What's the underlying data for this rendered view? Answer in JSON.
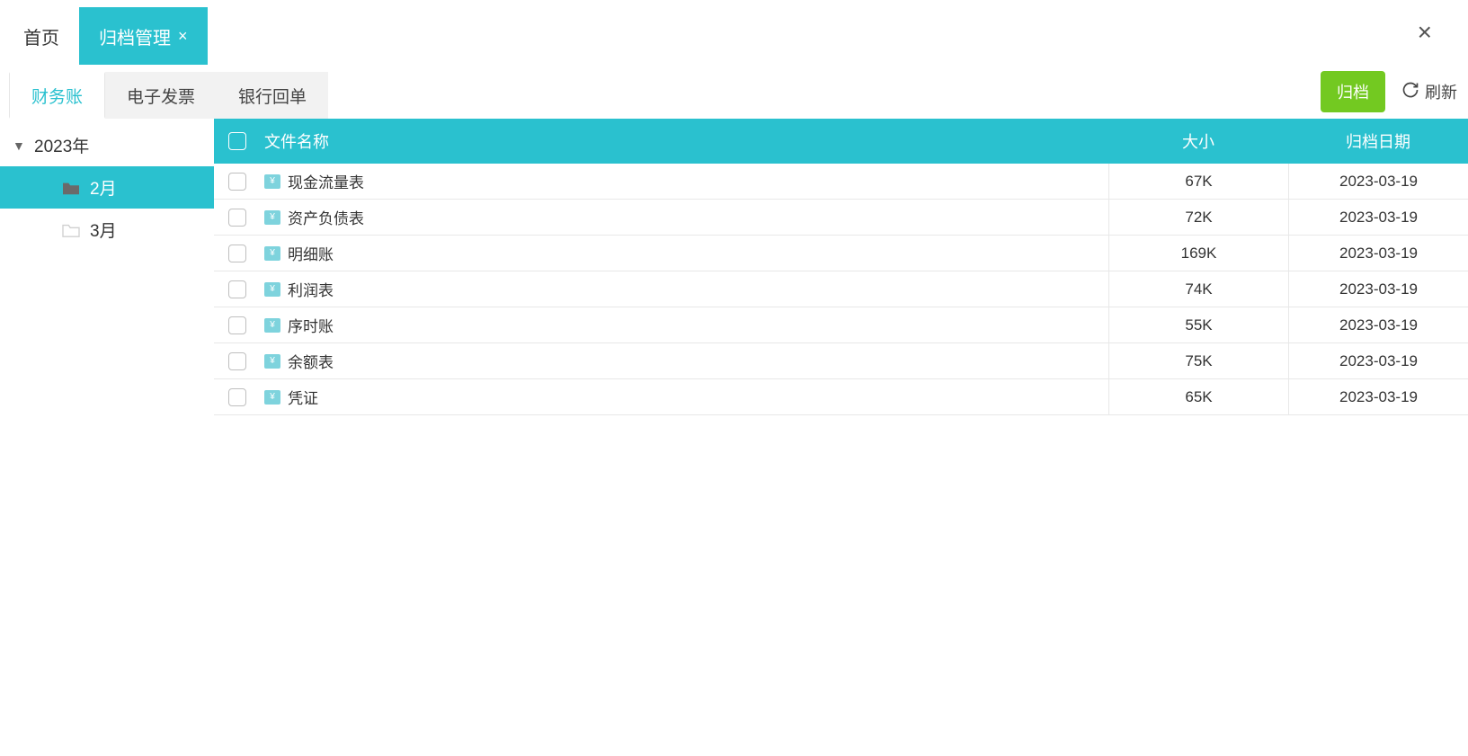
{
  "colors": {
    "primary": "#2ac1cf",
    "archive_btn": "#73c921",
    "text": "#333333",
    "border": "#e8e8e8",
    "file_icon": "#7ed3dd"
  },
  "top_tabs": {
    "items": [
      {
        "label": "首页",
        "active": false,
        "closable": false
      },
      {
        "label": "归档管理",
        "active": true,
        "closable": true
      }
    ]
  },
  "sub_tabs": {
    "items": [
      {
        "label": "财务账",
        "active": true
      },
      {
        "label": "电子发票",
        "active": false
      },
      {
        "label": "银行回单",
        "active": false
      }
    ]
  },
  "actions": {
    "archive_label": "归档",
    "refresh_label": "刷新"
  },
  "tree": {
    "year_label": "2023年",
    "months": [
      {
        "label": "2月",
        "active": true
      },
      {
        "label": "3月",
        "active": false
      }
    ]
  },
  "table": {
    "columns": {
      "name": "文件名称",
      "size": "大小",
      "date": "归档日期"
    },
    "rows": [
      {
        "name": "现金流量表",
        "size": "67K",
        "date": "2023-03-19"
      },
      {
        "name": "资产负债表",
        "size": "72K",
        "date": "2023-03-19"
      },
      {
        "name": "明细账",
        "size": "169K",
        "date": "2023-03-19"
      },
      {
        "name": "利润表",
        "size": "74K",
        "date": "2023-03-19"
      },
      {
        "name": "序时账",
        "size": "55K",
        "date": "2023-03-19"
      },
      {
        "name": "余额表",
        "size": "75K",
        "date": "2023-03-19"
      },
      {
        "name": "凭证",
        "size": "65K",
        "date": "2023-03-19"
      }
    ]
  }
}
